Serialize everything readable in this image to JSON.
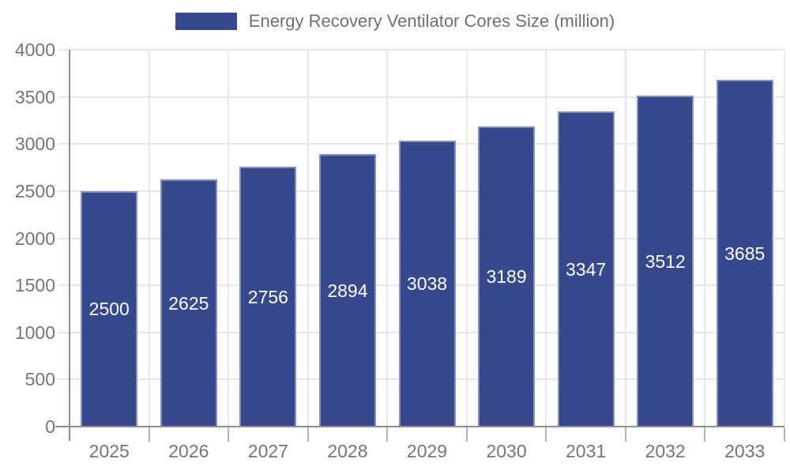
{
  "legend": {
    "label": "Energy Recovery Ventilator Cores Size (million)"
  },
  "chart_data": {
    "type": "bar",
    "title": "Energy Recovery Ventilator Cores Size (million)",
    "categories": [
      "2025",
      "2026",
      "2027",
      "2028",
      "2029",
      "2030",
      "2031",
      "2032",
      "2033"
    ],
    "series": [
      {
        "name": "Energy Recovery Ventilator Cores Size (million)",
        "values": [
          2500,
          2625,
          2756,
          2894,
          3038,
          3189,
          3347,
          3512,
          3685
        ]
      }
    ],
    "value_labels": [
      2500,
      2625,
      2756,
      2894,
      3038,
      3189,
      3347,
      3512,
      3685
    ],
    "value_label_position": "inside-center",
    "xlabel": "",
    "ylabel": "",
    "ylim": [
      0,
      4000
    ],
    "yticks": [
      0,
      500,
      1000,
      1500,
      2000,
      2500,
      3000,
      3500,
      4000
    ],
    "grid": true,
    "legend_position": "top",
    "colors": {
      "bar_fill": "#36498c",
      "bar_border": "#8violet",
      "bar_border_color": "#8591bd",
      "grid_line": "#e6e6e6",
      "axis_line": "#8f8f8f",
      "minor_tick": "#b3b3b3",
      "tick_label": "#757575",
      "value_label": "#ffffff",
      "legend_label": "#6f6f6f",
      "background": "#ffffff"
    }
  }
}
